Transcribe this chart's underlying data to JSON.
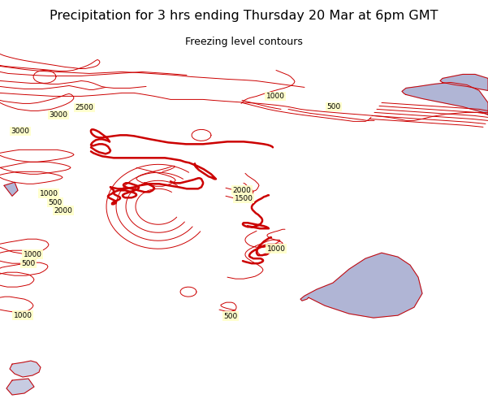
{
  "title": "Precipitation for 3 hrs ending Thursday 20 Mar at 6pm GMT",
  "subtitle": "Freezing level contours",
  "title_fontsize": 11.5,
  "subtitle_fontsize": 9,
  "map_bg": "#cdd1e8",
  "contour_color": "#cc0000",
  "label_bg": "#ffffc8",
  "fig_width": 6.01,
  "fig_height": 4.96,
  "dpi": 100,
  "title_bg": "#ffffff",
  "water_color": "#b0b5d5",
  "lw_thin": 0.7,
  "lw_thick": 1.8
}
